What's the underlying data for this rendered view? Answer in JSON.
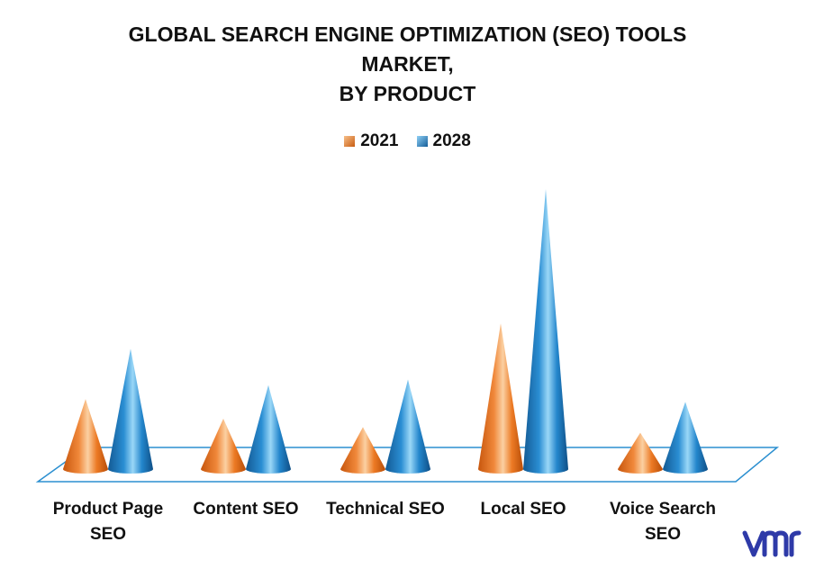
{
  "chart_data": {
    "type": "bar",
    "title_lines": [
      "GLOBAL SEARCH ENGINE OPTIMIZATION (SEO) TOOLS",
      "MARKET,",
      "BY PRODUCT"
    ],
    "categories": [
      "Product Page SEO",
      "Content SEO",
      "Technical SEO",
      "Local SEO",
      "Voice Search SEO"
    ],
    "category_lines": [
      [
        "Product Page",
        "SEO"
      ],
      [
        "Content SEO"
      ],
      [
        "Technical SEO"
      ],
      [
        "Local SEO"
      ],
      [
        "Voice Search",
        "SEO"
      ]
    ],
    "series": [
      {
        "name": "2021",
        "values": [
          2.5,
          1.8,
          1.5,
          5.2,
          1.3
        ],
        "color": "#e8731e"
      },
      {
        "name": "2028",
        "values": [
          4.3,
          3.0,
          3.2,
          10.0,
          2.4
        ],
        "color": "#1f7fc4"
      }
    ],
    "ylim": [
      0,
      10
    ],
    "legend_position": "top-center",
    "grid": false
  },
  "logo": {
    "name": "vmr-logo",
    "color": "#2e3aa8"
  }
}
